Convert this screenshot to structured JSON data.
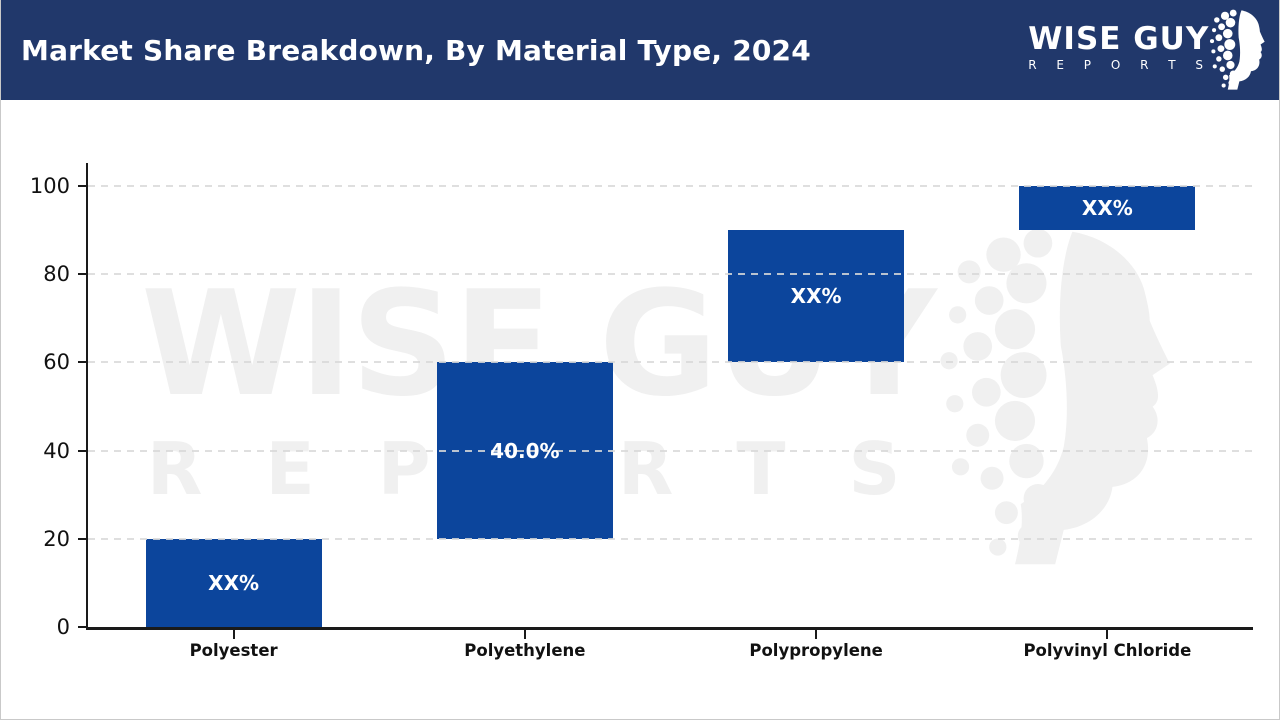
{
  "header": {
    "title": "Market Share Breakdown, By Material Type, 2024",
    "logo": {
      "line1": "WISE GUY",
      "line2": "R E P O R T S"
    }
  },
  "watermark": {
    "line1": "WISE GUY",
    "line2": "R E P O R T S"
  },
  "colors": {
    "header_bg": "#21386b",
    "bar": "#0c459c",
    "grid": "#d9d9d9",
    "axis": "#1a1a1a",
    "watermark": "#f0f0f0",
    "title_text": "#ffffff",
    "bar_label_text": "#ffffff"
  },
  "chart_data": {
    "type": "bar",
    "subtype": "waterfall",
    "title": "Market Share Breakdown, By Material Type, 2024",
    "categories": [
      "Polyester",
      "Polyethylene",
      "Polypropylene",
      "Polyvinyl Chloride"
    ],
    "series": [
      {
        "name": "Market Share (%)",
        "segments": [
          {
            "category": "Polyester",
            "start": 0,
            "end": 20,
            "label": "XX%"
          },
          {
            "category": "Polyethylene",
            "start": 20,
            "end": 60,
            "label": "40.0%"
          },
          {
            "category": "Polypropylene",
            "start": 60,
            "end": 90,
            "label": "XX%"
          },
          {
            "category": "Polyvinyl Chloride",
            "start": 90,
            "end": 100,
            "label": "XX%"
          }
        ]
      }
    ],
    "xlabel": "",
    "ylabel": "",
    "ylim": [
      0,
      100
    ],
    "yticks": [
      0,
      20,
      40,
      60,
      80,
      100
    ],
    "grid": "horizontal-dashed",
    "legend": "none"
  }
}
